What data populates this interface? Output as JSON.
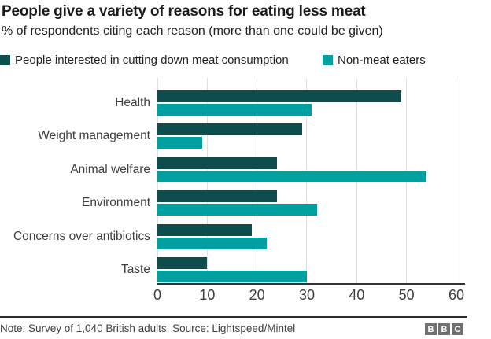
{
  "header": {
    "title": "People give a variety of reasons for eating less meat",
    "subtitle": "% of respondents citing each reason (more than one could be given)"
  },
  "legend": [
    {
      "label": "People interested in cutting down meat consumption",
      "color": "#0d4d4d"
    },
    {
      "label": "Non-meat eaters",
      "color": "#00a0a0"
    }
  ],
  "chart_data": {
    "type": "bar",
    "orientation": "horizontal",
    "title": "People give a variety of reasons for eating less meat",
    "subtitle": "% of respondents citing each reason (more than one could be given)",
    "categories": [
      "Health",
      "Weight management",
      "Animal welfare",
      "Environment",
      "Concerns over antibiotics",
      "Taste"
    ],
    "series": [
      {
        "name": "People interested in cutting down meat consumption",
        "color": "#0d4d4d",
        "values": [
          49,
          29,
          24,
          24,
          19,
          10
        ]
      },
      {
        "name": "Non-meat eaters",
        "color": "#00a0a0",
        "values": [
          31,
          9,
          54,
          32,
          22,
          30
        ]
      }
    ],
    "xlabel": "",
    "ylabel": "",
    "xlim": [
      0,
      60
    ],
    "xticks": [
      0,
      10,
      20,
      30,
      40,
      50,
      60
    ],
    "grid": true,
    "gridline_color": "#e0e0e0",
    "axis_color": "#333333",
    "legend_position": "top"
  },
  "footer": {
    "note": "Note: Survey of 1,040 British adults. Source: Lightspeed/Mintel",
    "logo_letters": [
      "B",
      "B",
      "C"
    ]
  }
}
